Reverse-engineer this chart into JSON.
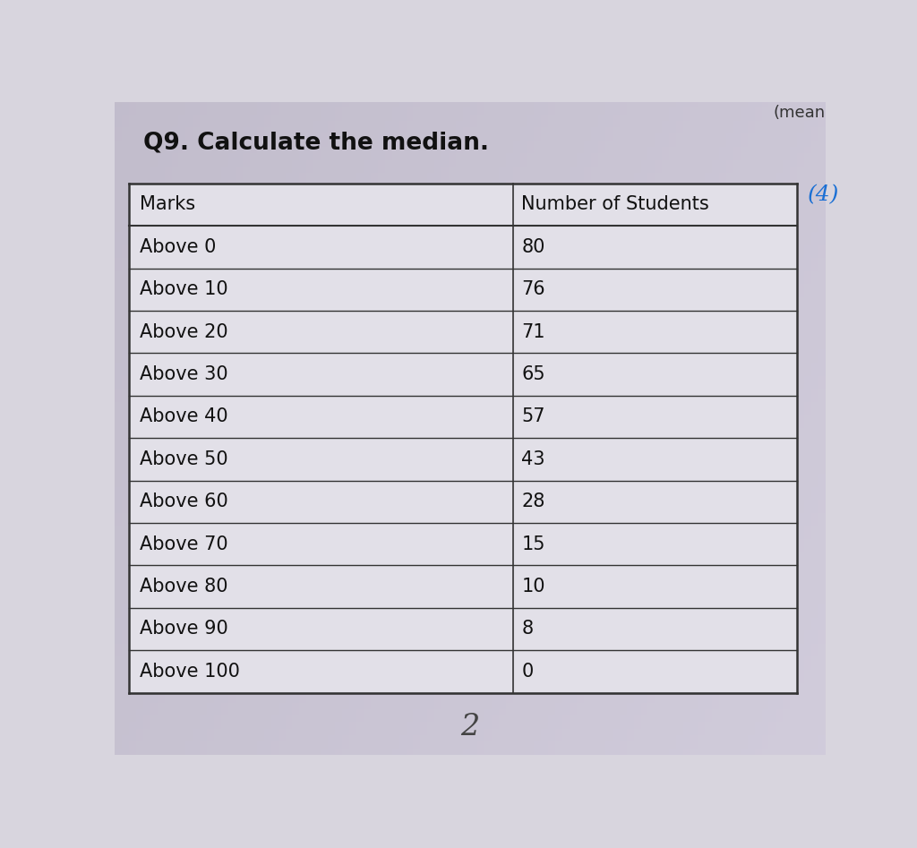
{
  "title": "Q9. Calculate the median.",
  "col1_header": "Marks",
  "col2_header": "Number of Students",
  "annotation": "(4)",
  "rows": [
    [
      "Above 0",
      "80"
    ],
    [
      "Above 10",
      "76"
    ],
    [
      "Above 20",
      "71"
    ],
    [
      "Above 30",
      "65"
    ],
    [
      "Above 40",
      "57"
    ],
    [
      "Above 50",
      "43"
    ],
    [
      "Above 60",
      "28"
    ],
    [
      "Above 70",
      "15"
    ],
    [
      "Above 80",
      "10"
    ],
    [
      "Above 90",
      "8"
    ],
    [
      "Above 100",
      "0"
    ]
  ],
  "footer_text": "2",
  "bg_color_top": "#b8b4c0",
  "bg_color_bottom": "#a8a4b0",
  "bg_color_left": "#c0bcca",
  "bg_color_right": "#d8d4dc",
  "paper_color": "#d8d5de",
  "table_bg": "#e8e6ec",
  "title_fontsize": 19,
  "header_fontsize": 15,
  "cell_fontsize": 15,
  "title_color": "#111111",
  "text_color": "#111111",
  "line_color": "#333333",
  "annotation_color": "#1a6fd4",
  "footer_color": "#444444",
  "topright_color": "#333333",
  "col_split": 0.575
}
